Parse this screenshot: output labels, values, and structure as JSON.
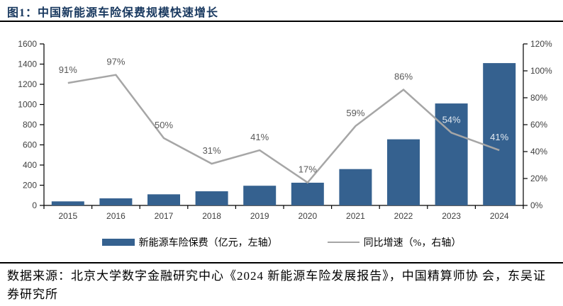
{
  "header": {
    "title": "图1：中国新能源车险保费规模快速增长"
  },
  "chart_data": {
    "type": "bar+line",
    "title": "中国新能源车险保费规模快速增长",
    "categories": [
      "2015",
      "2016",
      "2017",
      "2018",
      "2019",
      "2020",
      "2021",
      "2022",
      "2023",
      "2024"
    ],
    "series": [
      {
        "name": "新能源车险保费（亿元，左轴）",
        "type": "bar",
        "axis": "left",
        "values": [
          40,
          70,
          110,
          140,
          195,
          225,
          360,
          655,
          1010,
          1410
        ],
        "color": "#35618F"
      },
      {
        "name": "同比增速（%，右轴）",
        "type": "line",
        "axis": "right",
        "values": [
          91,
          97,
          50,
          31,
          41,
          17,
          59,
          86,
          54,
          41
        ],
        "color": "#A6A6A6"
      }
    ],
    "data_labels": [
      "91%",
      "97%",
      "50%",
      "31%",
      "41%",
      "17%",
      "59%",
      "86%",
      "54%",
      "41%"
    ],
    "data_label_colors": [
      "#595959",
      "#595959",
      "#595959",
      "#595959",
      "#595959",
      "#595959",
      "#595959",
      "#595959",
      "#E4EAF1",
      "#E4EAF1"
    ],
    "axes": {
      "left": {
        "min": 0,
        "max": 1600,
        "step": 200,
        "suffix": ""
      },
      "right": {
        "min": 0,
        "max": 120,
        "step": 20,
        "suffix": "%"
      }
    },
    "grid": false,
    "legend_position": "bottom",
    "tick_text_color": "#3F3F3F",
    "axis_color": "#000000"
  },
  "footer": {
    "line1": "数据来源：北京大学数字金融研究中心《2024 新能源车险发展报告》，中国精算师协",
    "line2": "会，东吴证券研究所"
  },
  "colors": {
    "title_accent": "#17375E",
    "bar": "#35618F",
    "line": "#A6A6A6",
    "rule": "#000000"
  }
}
